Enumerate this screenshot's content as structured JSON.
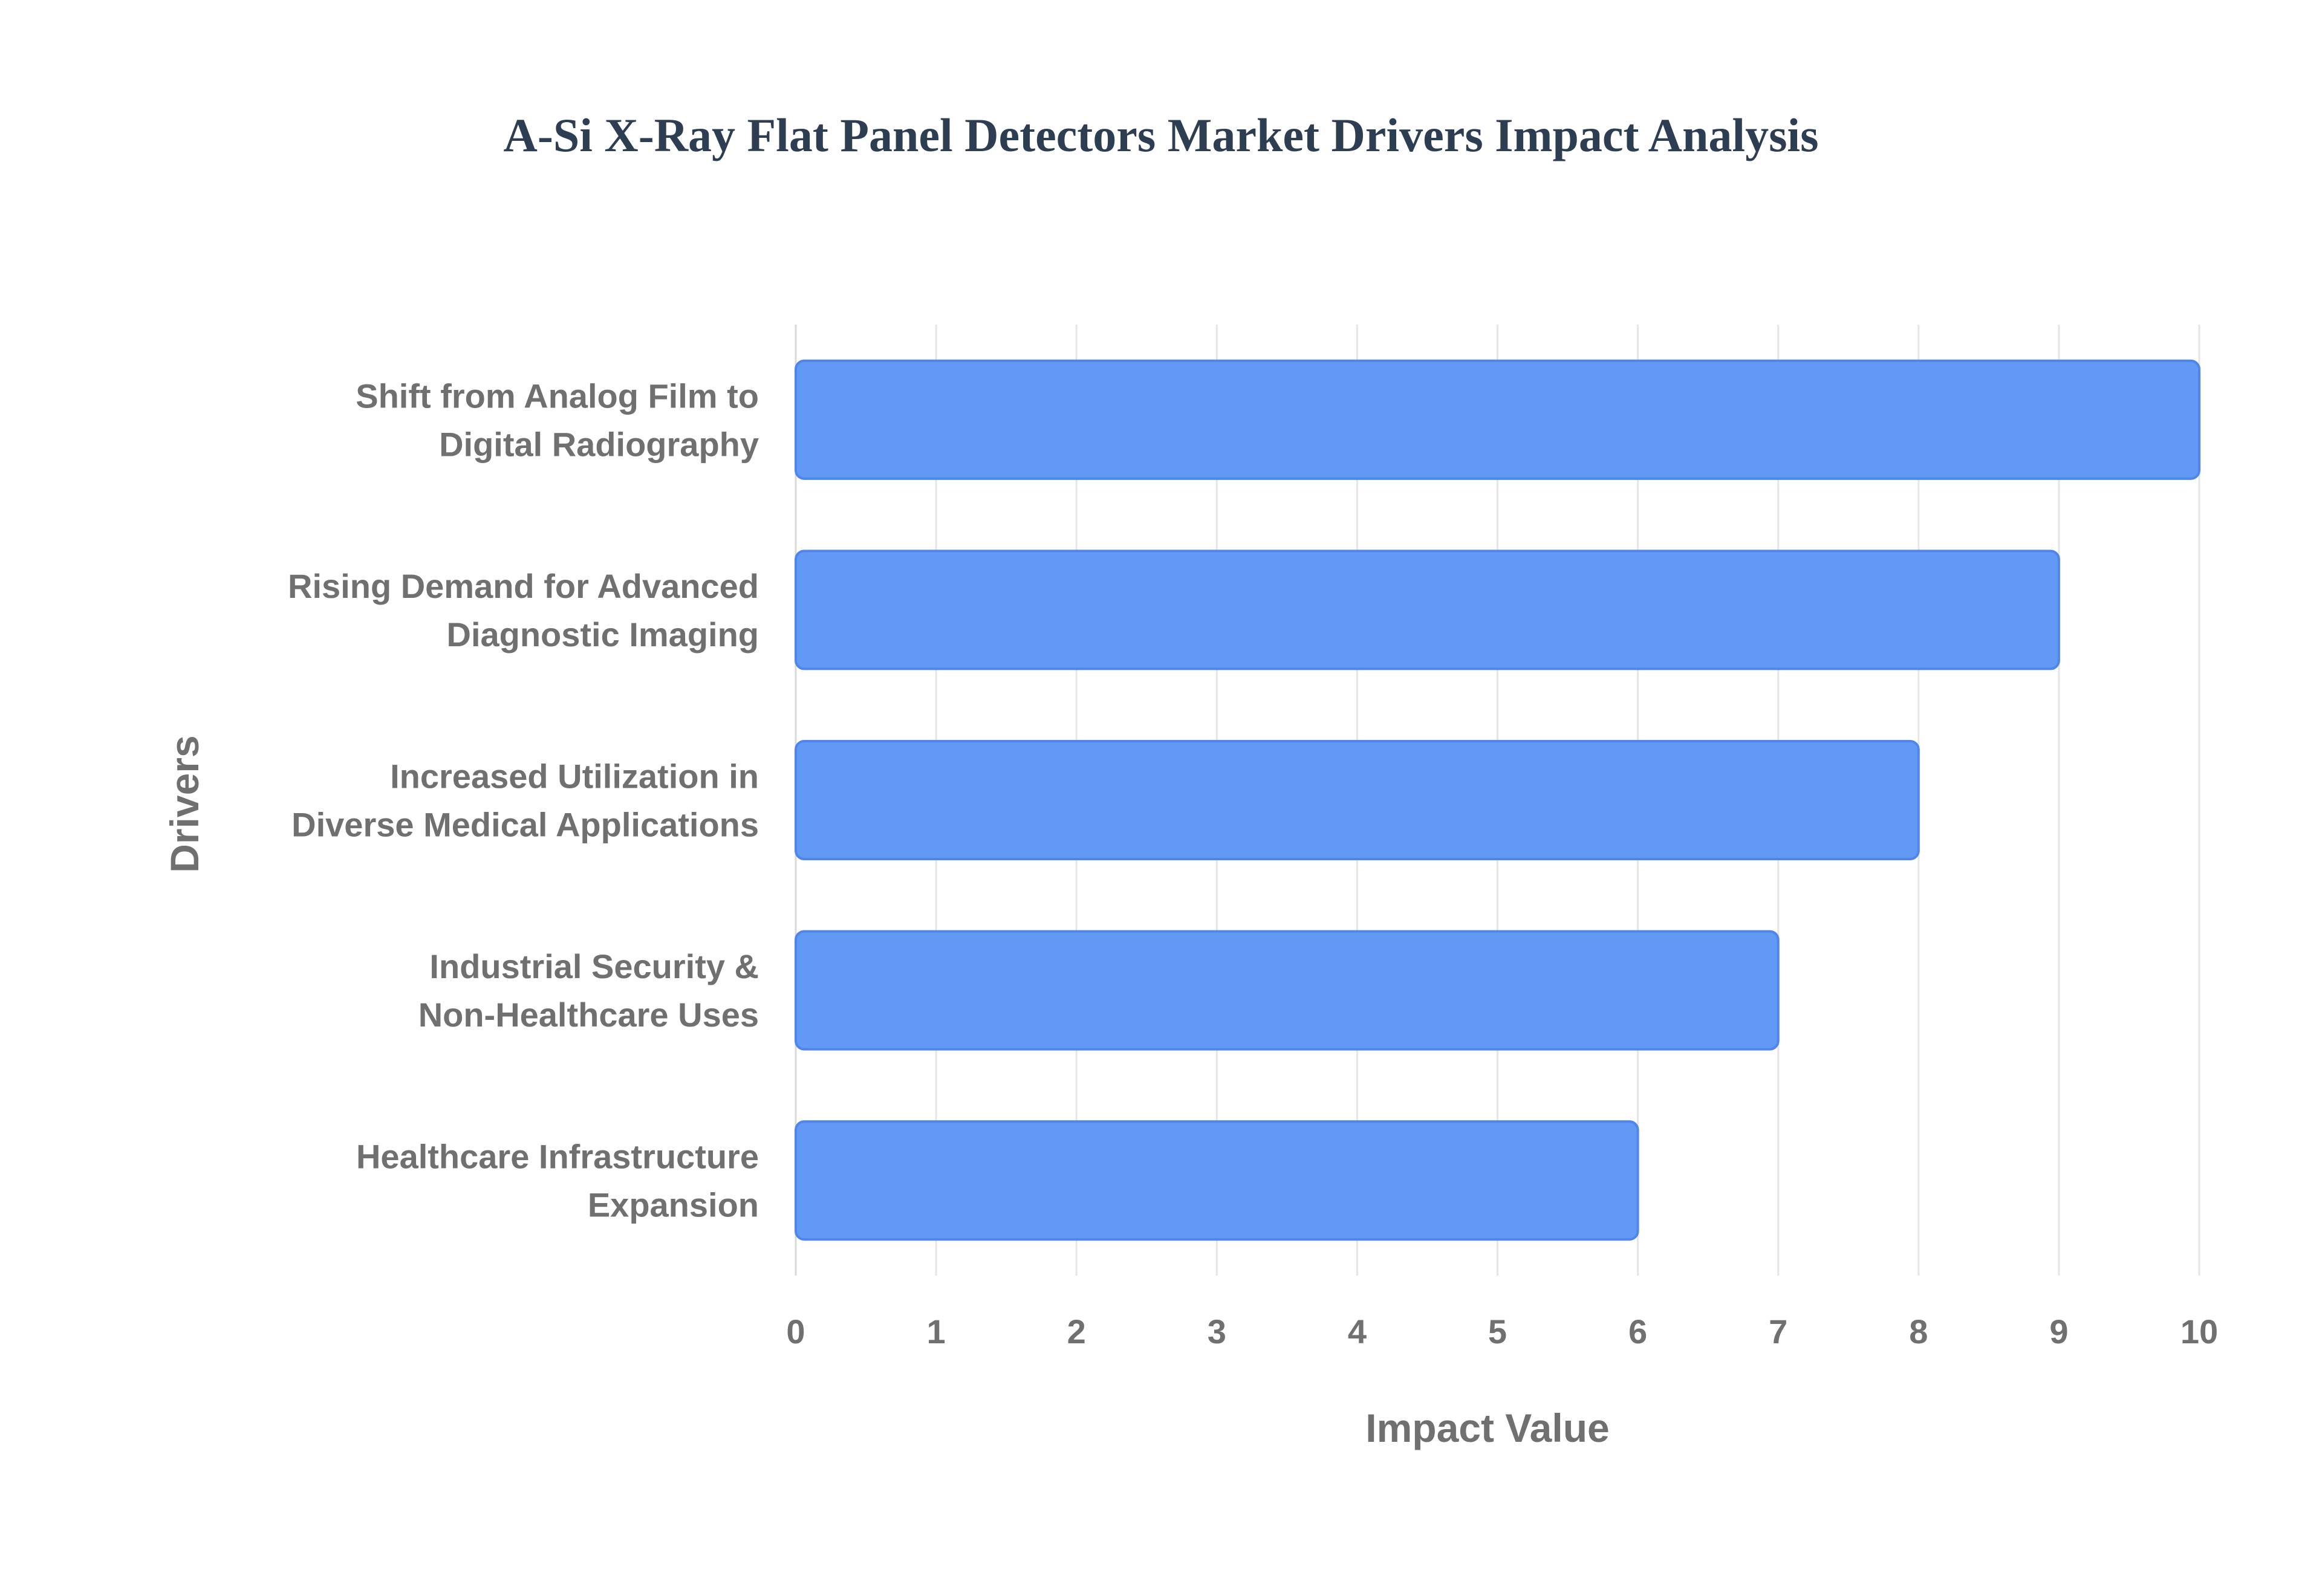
{
  "chart_data": {
    "type": "bar",
    "orientation": "horizontal",
    "title": "A-Si X-Ray Flat Panel Detectors Market Drivers Impact Analysis",
    "xlabel": "Impact Value",
    "ylabel": "Drivers",
    "categories": [
      [
        "Shift from Analog Film to",
        "Digital Radiography"
      ],
      [
        "Rising Demand for Advanced",
        "Diagnostic Imaging"
      ],
      [
        "Increased Utilization in",
        "Diverse Medical Applications"
      ],
      [
        "Industrial Security &",
        "Non-Healthcare Uses"
      ],
      [
        "Healthcare Infrastructure",
        "Expansion"
      ]
    ],
    "values": [
      10,
      9,
      8,
      7,
      6
    ],
    "xlim": [
      0,
      10
    ],
    "xticks": [
      "0",
      "1",
      "2",
      "3",
      "4",
      "5",
      "6",
      "7",
      "8",
      "9",
      "10"
    ],
    "grid": true,
    "legend": "none"
  },
  "colors": {
    "bar_fill": "#6199F5",
    "bar_stroke": "#4F86EC",
    "title": "#2E3E52",
    "label": "#707070",
    "grid": "#E6E6E6",
    "background": "#FFFFFF"
  }
}
